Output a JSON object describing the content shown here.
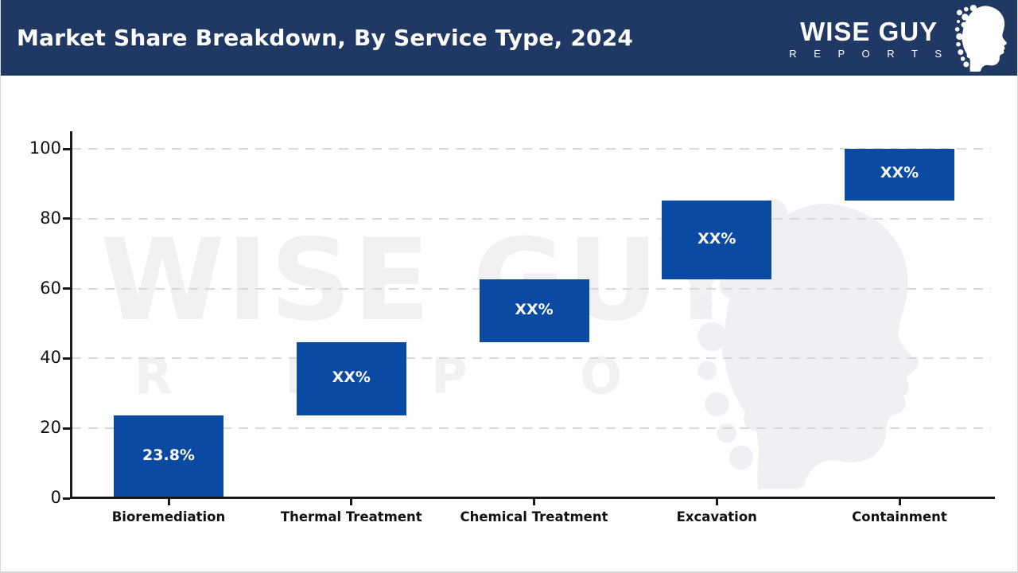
{
  "header": {
    "title": "Market Share Breakdown, By Service Type, 2024",
    "logo": {
      "line1": "WISE GUY",
      "line2": "R E P O R T S"
    }
  },
  "watermark": {
    "line1": "WISE GUY",
    "line2": "R E P O R T S"
  },
  "colors": {
    "header_bg": "#1f3864",
    "bar_fill": "#0b4aa2",
    "bar_label": "#ffffff",
    "grid": "#d9d9d9",
    "axis": "#1a1a1a",
    "watermark": "#f1f1f4"
  },
  "chart_data": {
    "type": "bar",
    "subtype": "waterfall (floating cumulative bars)",
    "title": "Market Share Breakdown, By Service Type, 2024",
    "xlabel": "",
    "ylabel": "",
    "ylim": [
      0,
      100
    ],
    "yticks": [
      "0",
      "20",
      "40",
      "60",
      "80",
      "100"
    ],
    "ytick_values": [
      0,
      20,
      40,
      60,
      80,
      100
    ],
    "grid": "horizontal dashed",
    "legend": "none",
    "categories": [
      "Bioremediation",
      "Thermal Treatment",
      "Chemical Treatment",
      "Excavation",
      "Containment"
    ],
    "segments": [
      {
        "category": "Bioremediation",
        "start": 0,
        "end": 23.8,
        "label": "23.8%"
      },
      {
        "category": "Thermal Treatment",
        "start": 23.8,
        "end": 44.6,
        "label": "XX%"
      },
      {
        "category": "Chemical Treatment",
        "start": 44.6,
        "end": 62.6,
        "label": "XX%"
      },
      {
        "category": "Excavation",
        "start": 62.6,
        "end": 85.2,
        "label": "XX%"
      },
      {
        "category": "Containment",
        "start": 85.2,
        "end": 100,
        "label": "XX%"
      }
    ]
  }
}
